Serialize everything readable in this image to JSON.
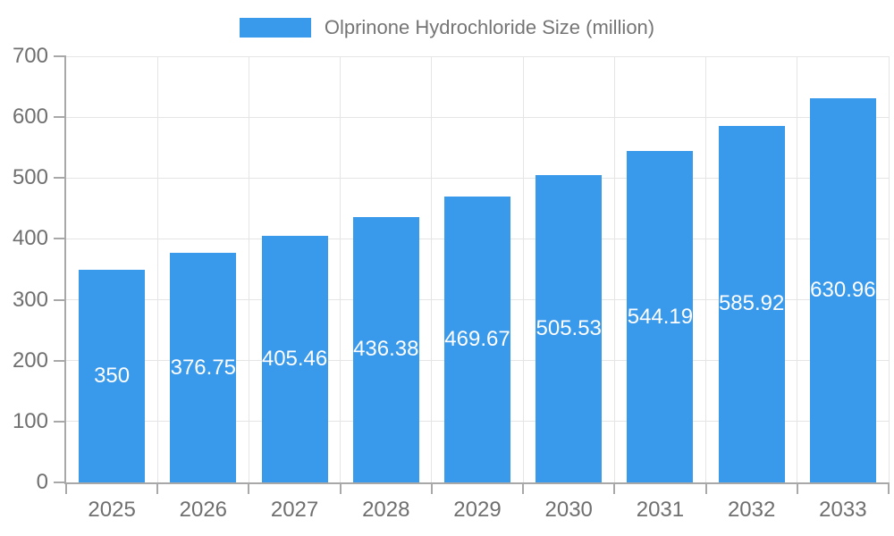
{
  "legend": {
    "items": [
      {
        "label": "Olprinone Hydrochloride Size (million)",
        "color": "#3999EB"
      }
    ]
  },
  "colors": {
    "bar": "#3999EB",
    "grid": "#E5E5E5",
    "axis": "#A8A8A8",
    "tick_text": "#6F6F6F",
    "legend_text": "#757575",
    "bar_label": "#FFFFFF",
    "background": "#FFFFFF"
  },
  "chart_data": {
    "type": "bar",
    "title": "Olprinone Hydrochloride Size (million)",
    "categories": [
      "2025",
      "2026",
      "2027",
      "2028",
      "2029",
      "2030",
      "2031",
      "2032",
      "2033"
    ],
    "values": [
      350,
      376.75,
      405.46,
      436.38,
      469.67,
      505.53,
      544.19,
      585.92,
      630.96
    ],
    "series_name": "Olprinone Hydrochloride Size (million)",
    "xlabel": "",
    "ylabel": "",
    "ylim": [
      0,
      700
    ],
    "yticks": [
      0,
      100,
      200,
      300,
      400,
      500,
      600,
      700
    ],
    "grid": true,
    "legend_position": "top",
    "value_labels_inside_bars": true
  }
}
